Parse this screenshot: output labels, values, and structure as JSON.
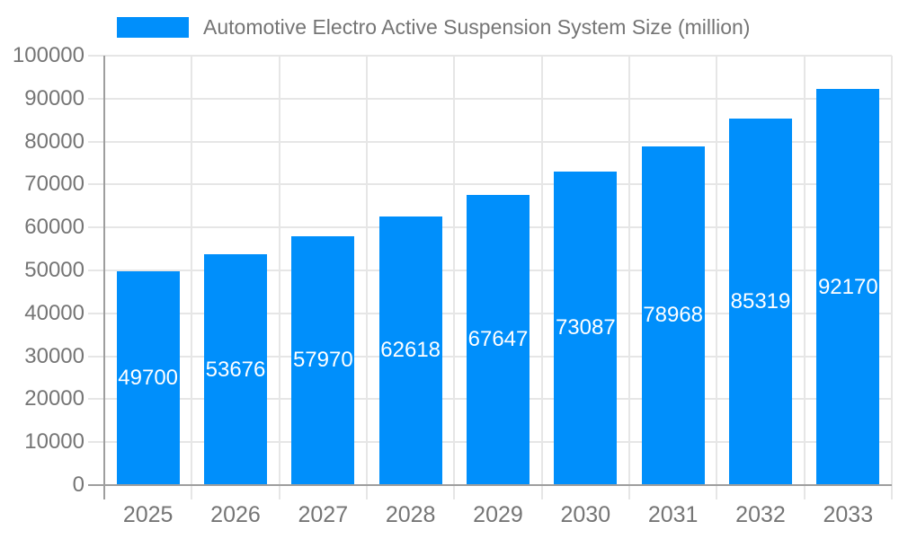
{
  "chart_data": {
    "type": "bar",
    "title": "Automotive Electro Active Suspension System Size (million)",
    "categories": [
      "2025",
      "2026",
      "2027",
      "2028",
      "2029",
      "2030",
      "2031",
      "2032",
      "2033"
    ],
    "values": [
      49700,
      53676,
      57970,
      62618,
      67647,
      73087,
      78968,
      85319,
      92170
    ],
    "xlabel": "",
    "ylabel": "",
    "ylim": [
      0,
      100000
    ],
    "ytick_step": 10000,
    "ytick_labels": [
      "0",
      "10000",
      "20000",
      "30000",
      "40000",
      "50000",
      "60000",
      "70000",
      "80000",
      "90000",
      "100000"
    ],
    "grid": true,
    "legend_position": "top",
    "colors": {
      "bar": "#008FFB",
      "bar_value_text": "#ffffff",
      "axis_text": "#757575",
      "gridline": "#e6e6e6",
      "axis_line": "#9e9e9e",
      "background": "#ffffff"
    }
  }
}
